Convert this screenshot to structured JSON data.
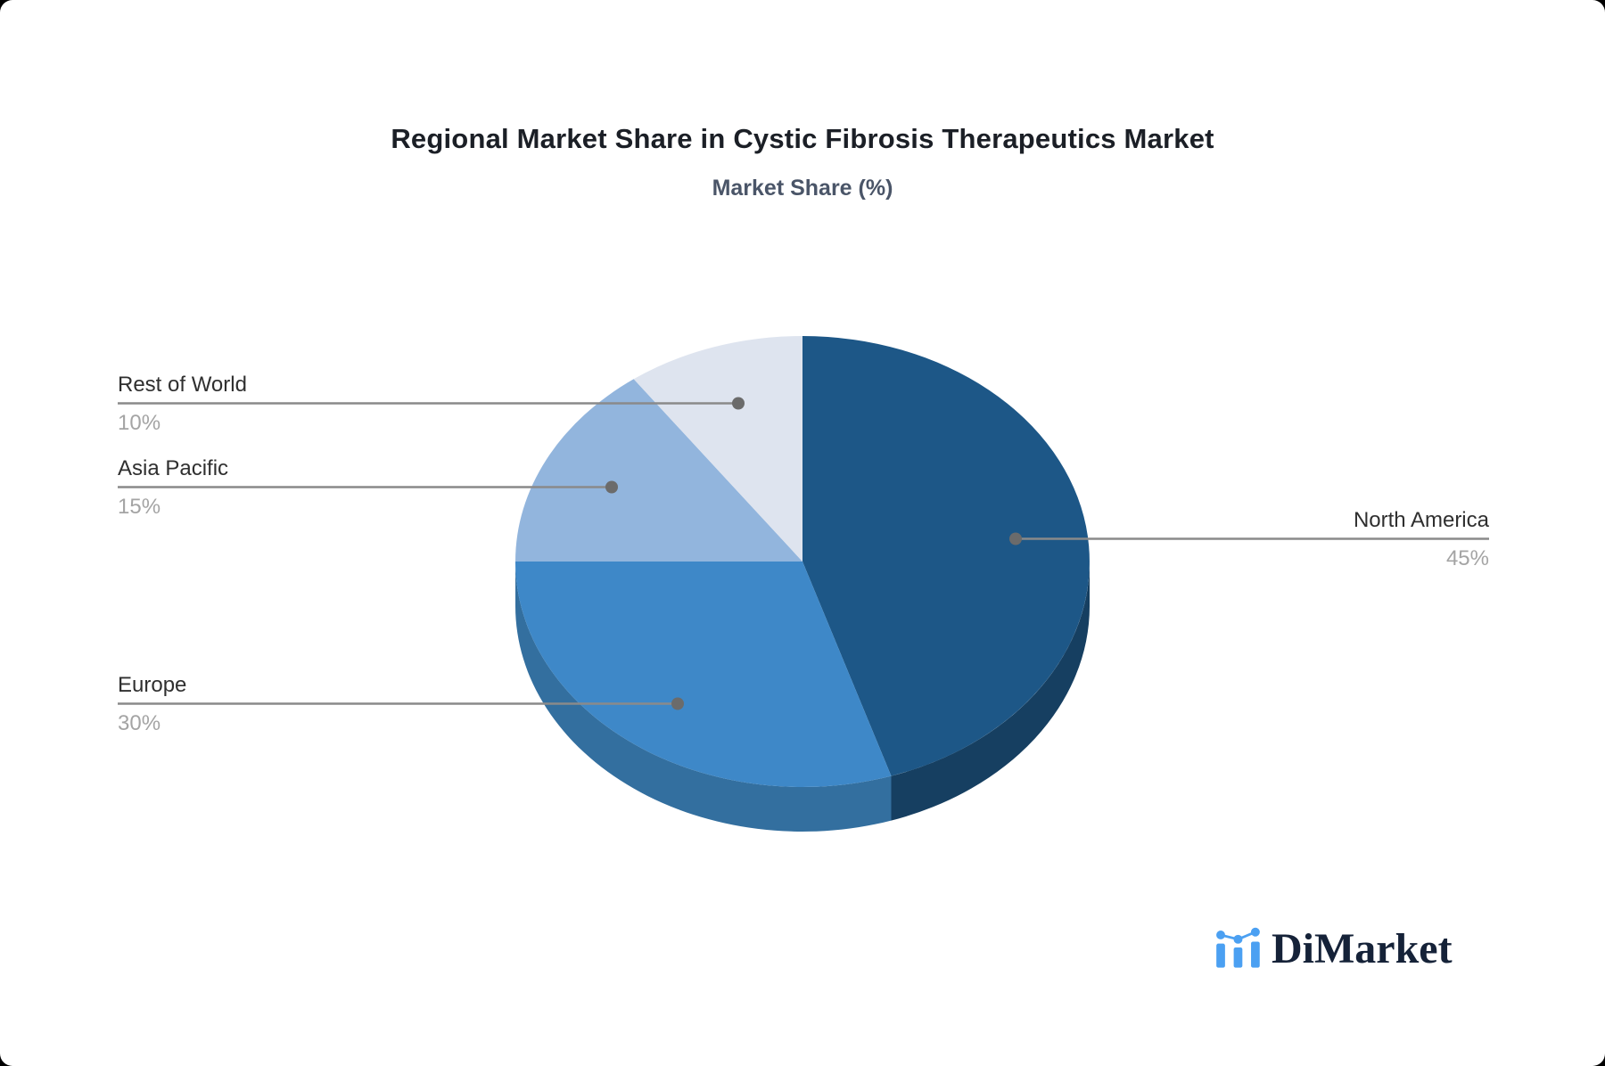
{
  "title": "Regional Market Share in Cystic Fibrosis Therapeutics Market",
  "subtitle": "Market Share (%)",
  "chart_data": {
    "type": "pie",
    "title": "Regional Market Share in Cystic Fibrosis Therapeutics Market",
    "subtitle": "Market Share (%)",
    "unit": "%",
    "style": "3d",
    "start_angle_deg": 0,
    "direction": "clockwise",
    "legend_position": "callout-lines",
    "slices": [
      {
        "label": "North America",
        "value": 45,
        "pct_label": "45%",
        "color": "#1D5787",
        "depth_color": "#163F61"
      },
      {
        "label": "Europe",
        "value": 30,
        "pct_label": "30%",
        "color": "#3E88C8",
        "depth_color": "#336F9F"
      },
      {
        "label": "Asia Pacific",
        "value": 15,
        "pct_label": "15%",
        "color": "#92B5DD",
        "depth_color": "#7795B8"
      },
      {
        "label": "Rest of World",
        "value": 10,
        "pct_label": "10%",
        "color": "#DEE4EF",
        "depth_color": "#B8C2D2"
      }
    ],
    "callout_line_color": "#8a8a8a",
    "callout_dot_color": "#6b6b6b"
  },
  "logo": {
    "text": "DiMarket",
    "icon": "bar-chart-logo-icon",
    "icon_color": "#4BA0F2",
    "text_color": "#152238"
  }
}
